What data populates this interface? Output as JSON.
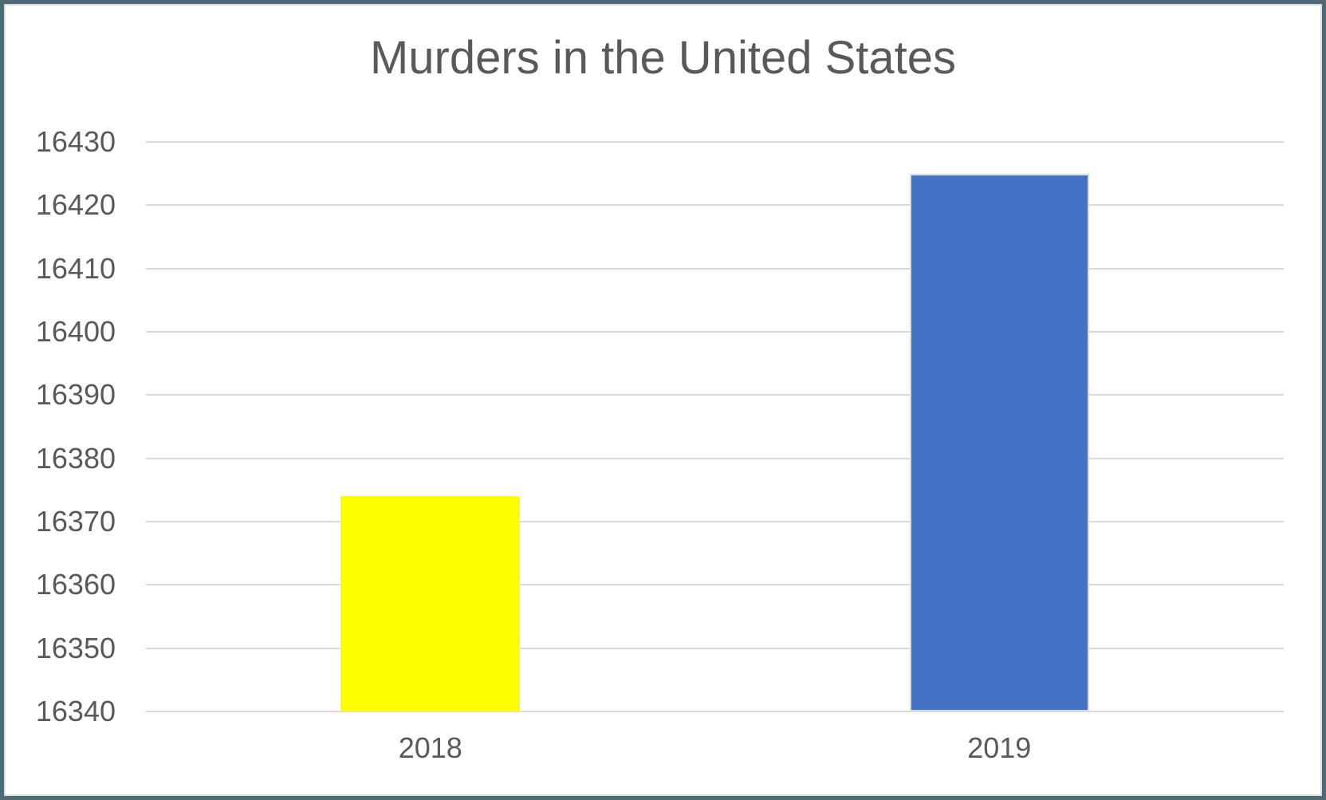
{
  "window": {
    "frame_color": "#4E6A75",
    "inner_border_color": "#DDDDDD",
    "background_color": "#FFFFFF",
    "text_color": "#595959"
  },
  "chart_data": {
    "type": "bar",
    "title": "Murders in the United States",
    "categories": [
      "2018",
      "2019"
    ],
    "values": [
      16374,
      16425
    ],
    "bar_colors": [
      "#FFFF00",
      "#4472C4"
    ],
    "bar_border_colors": [
      "none",
      "#D9D9D9"
    ],
    "xlabel": "",
    "ylabel": "",
    "ylim": [
      16340,
      16430
    ],
    "ytick_step": 10,
    "ytick_labels": [
      "16340",
      "16350",
      "16360",
      "16370",
      "16380",
      "16390",
      "16400",
      "16410",
      "16420",
      "16430"
    ],
    "grid": true,
    "gridline_color": "#D9D9D9",
    "legend": false
  }
}
